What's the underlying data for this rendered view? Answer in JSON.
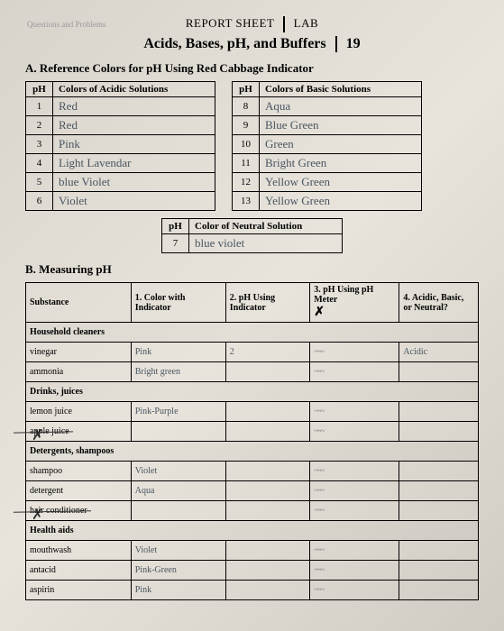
{
  "header": {
    "report_sheet": "REPORT SHEET",
    "lab": "LAB",
    "title": "Acids, Bases, pH, and Buffers",
    "number": "19"
  },
  "faint_text": "Questions and Problems",
  "sectionA": {
    "heading": "A.  Reference Colors for pH Using Red Cabbage Indicator",
    "acidic": {
      "ph_label": "pH",
      "colors_label": "Colors of Acidic Solutions",
      "rows": [
        {
          "ph": "1",
          "color": "Red"
        },
        {
          "ph": "2",
          "color": "Red"
        },
        {
          "ph": "3",
          "color": "Pink"
        },
        {
          "ph": "4",
          "color": "Light Lavendar"
        },
        {
          "ph": "5",
          "color": "blue Violet"
        },
        {
          "ph": "6",
          "color": "Violet"
        }
      ]
    },
    "basic": {
      "ph_label": "pH",
      "colors_label": "Colors of Basic Solutions",
      "rows": [
        {
          "ph": "8",
          "color": "Aqua"
        },
        {
          "ph": "9",
          "color": "Blue Green"
        },
        {
          "ph": "10",
          "color": "Green"
        },
        {
          "ph": "11",
          "color": "Bright Green"
        },
        {
          "ph": "12",
          "color": "Yellow Green"
        },
        {
          "ph": "13",
          "color": "Yellow Green"
        }
      ]
    },
    "neutral": {
      "ph_label": "pH",
      "colors_label": "Color of Neutral Solution",
      "ph": "7",
      "color": "blue violet"
    }
  },
  "sectionB": {
    "heading": "B.  Measuring pH",
    "headers": {
      "substance": "Substance",
      "c1": "1. Color with Indicator",
      "c2": "2. pH Using Indicator",
      "c3": "3. pH Using pH Meter",
      "c4": "4. Acidic, Basic, or Neutral?",
      "c3x": "✗"
    },
    "rows": [
      {
        "type": "cat",
        "label": "Household cleaners"
      },
      {
        "type": "item",
        "label": "vinegar",
        "c1": "Pink",
        "c2": "2",
        "c3": "",
        "c4": "Acidic"
      },
      {
        "type": "item",
        "label": "ammonia",
        "c1": "Bright green",
        "c2": "",
        "c3": "",
        "c4": ""
      },
      {
        "type": "cat",
        "label": "Drinks, juices"
      },
      {
        "type": "item",
        "label": "lemon juice",
        "c1": "Pink-Purple",
        "c2": "",
        "c3": "",
        "c4": ""
      },
      {
        "type": "item",
        "label": "apple juice",
        "strike": true,
        "xmark": "✗",
        "c1": "",
        "c2": "",
        "c3": "",
        "c4": ""
      },
      {
        "type": "cat",
        "label": "Detergents, shampoos"
      },
      {
        "type": "item",
        "label": "shampoo",
        "c1": "Violet",
        "c2": "",
        "c3": "",
        "c4": ""
      },
      {
        "type": "item",
        "label": "detergent",
        "c1": "Aqua",
        "c2": "",
        "c3": "",
        "c4": ""
      },
      {
        "type": "item",
        "label": "hair conditioner",
        "strike": true,
        "xmark": "✗",
        "c1": "",
        "c2": "",
        "c3": "",
        "c4": ""
      },
      {
        "type": "cat",
        "label": "Health aids"
      },
      {
        "type": "item",
        "label": "mouthwash",
        "c1": "Violet",
        "c2": "",
        "c3": "",
        "c4": ""
      },
      {
        "type": "item",
        "label": "antacid",
        "c1": "Pink-Green",
        "c2": "",
        "c3": "",
        "c4": ""
      },
      {
        "type": "item",
        "label": "aspirin",
        "c1": "Pink",
        "c2": "",
        "c3": "",
        "c4": ""
      }
    ]
  }
}
